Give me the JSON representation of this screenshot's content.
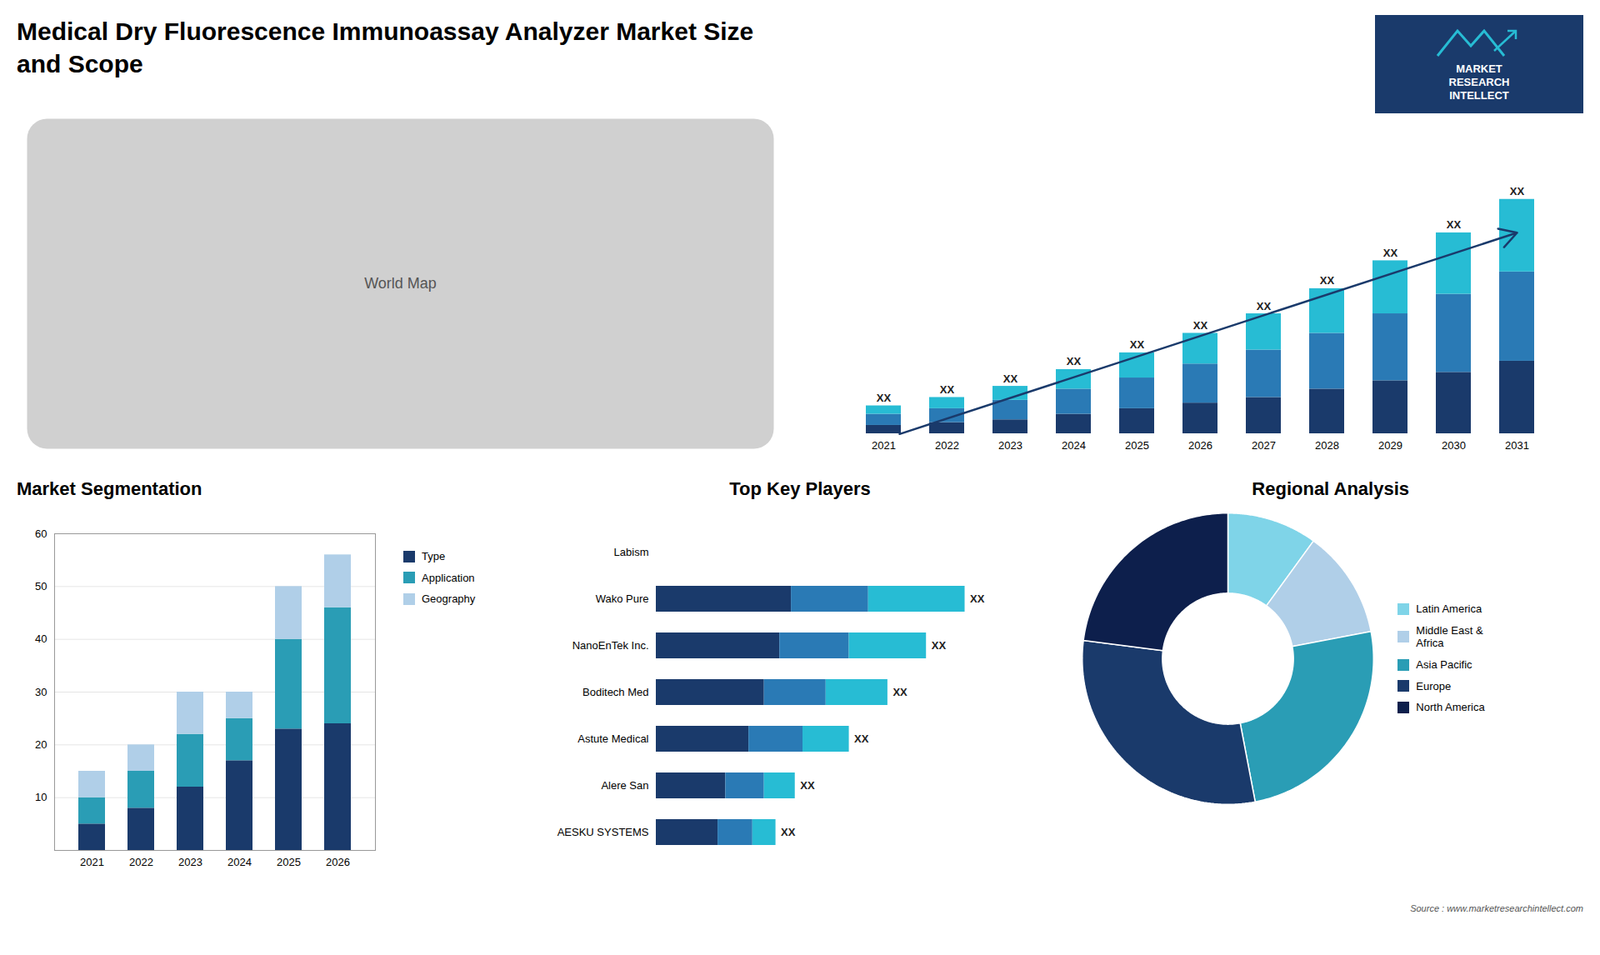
{
  "title": "Medical Dry Fluorescence Immunoassay Analyzer Market Size\nand Scope",
  "annotations": [
    {
      "text": "MARKET\nRESEARCH\nINTELLECT",
      "color": "#1a3a6b"
    },
    {
      "text": "Source : www.marketresearchintellect.com"
    }
  ],
  "chart_data": [
    {
      "type": "map",
      "annotations": [
        "World Map"
      ]
    },
    {
      "type": "bar",
      "stacked": true,
      "categories": [
        "2021",
        "2022",
        "2023",
        "2024",
        "2025",
        "2026",
        "2027",
        "2028",
        "2029",
        "2030",
        "2031"
      ],
      "series": [
        {
          "color": "#1a3a6b",
          "values": [
            3,
            4,
            5,
            7,
            9,
            11,
            13,
            16,
            19,
            22,
            26
          ]
        },
        {
          "color": "#2a7ab5",
          "values": [
            4,
            5,
            7,
            9,
            11,
            14,
            17,
            20,
            24,
            28,
            32
          ]
        },
        {
          "color": "#27bcd4",
          "values": [
            3,
            4,
            5,
            7,
            9,
            11,
            13,
            16,
            19,
            22,
            26
          ]
        }
      ],
      "ylim": [
        0,
        107.52
      ],
      "tick_labels": "x",
      "annotations": [
        {
          "type": "arrow",
          "color": "#1a3a6b"
        },
        {
          "text": "XX",
          "x": "2021"
        },
        {
          "text": "XX",
          "x": "2022"
        },
        {
          "text": "XX",
          "x": "2023"
        },
        {
          "text": "XX",
          "x": "2024"
        },
        {
          "text": "XX",
          "x": "2025"
        },
        {
          "text": "XX",
          "x": "2026"
        },
        {
          "text": "XX",
          "x": "2027"
        },
        {
          "text": "XX",
          "x": "2028"
        },
        {
          "text": "XX",
          "x": "2029"
        },
        {
          "text": "XX",
          "x": "2030"
        },
        {
          "text": "XX",
          "x": "2031"
        }
      ]
    },
    {
      "type": "bar",
      "title": "Market Segmentation",
      "stacked": true,
      "categories": [
        "2021",
        "2022",
        "2023",
        "2024",
        "2025",
        "2026"
      ],
      "series": [
        {
          "name": "Type",
          "color": "#1a3a6b",
          "values": [
            5,
            8,
            12,
            17,
            23,
            24
          ]
        },
        {
          "name": "Application",
          "color": "#2a9db5",
          "values": [
            5,
            7,
            10,
            8,
            17,
            22
          ]
        },
        {
          "name": "Geography",
          "color": "#b0cfe8",
          "values": [
            5,
            5,
            8,
            5,
            10,
            10
          ]
        }
      ],
      "ylim": [
        0,
        60
      ],
      "yticks": [
        10,
        20,
        30,
        40,
        50,
        60
      ],
      "grid": true,
      "legend": "right"
    },
    {
      "type": "bar",
      "title": "Top Key Players",
      "orientation": "horizontal",
      "stacked": true,
      "categories": [
        "Labism",
        "Wako Pure",
        "NanoEnTek Inc.",
        "Boditech Med",
        "Astute Medical",
        "Alere San",
        "AESKU SYSTEMS"
      ],
      "series": [
        {
          "color": "#1a3a6b",
          "values": [
            0,
            35,
            32,
            28,
            24,
            18,
            16
          ]
        },
        {
          "color": "#2a7ab5",
          "values": [
            0,
            20,
            18,
            16,
            14,
            10,
            9
          ]
        },
        {
          "color": "#27bcd4",
          "values": [
            0,
            25,
            20,
            16,
            12,
            8,
            6
          ]
        }
      ],
      "xlim": [
        0,
        95
      ],
      "tick_labels": "y",
      "annotations": [
        {
          "text": "XX",
          "y": "Wako Pure"
        },
        {
          "text": "XX",
          "y": "NanoEnTek Inc."
        },
        {
          "text": "XX",
          "y": "Boditech Med"
        },
        {
          "text": "XX",
          "y": "Astute Medical"
        },
        {
          "text": "XX",
          "y": "Alere San"
        },
        {
          "text": "XX",
          "y": "AESKU SYSTEMS"
        }
      ]
    },
    {
      "type": "pie",
      "title": "Regional Analysis",
      "categories": [
        "Latin America",
        "Middle East &\nAfrica",
        "Asia Pacific",
        "Europe",
        "North America"
      ],
      "values": [
        10,
        12,
        25,
        30,
        23
      ],
      "colors": [
        "#7fd4e8",
        "#b0cfe8",
        "#2a9db5",
        "#1a3a6b",
        "#0d1f4c"
      ],
      "legend": "right"
    }
  ]
}
